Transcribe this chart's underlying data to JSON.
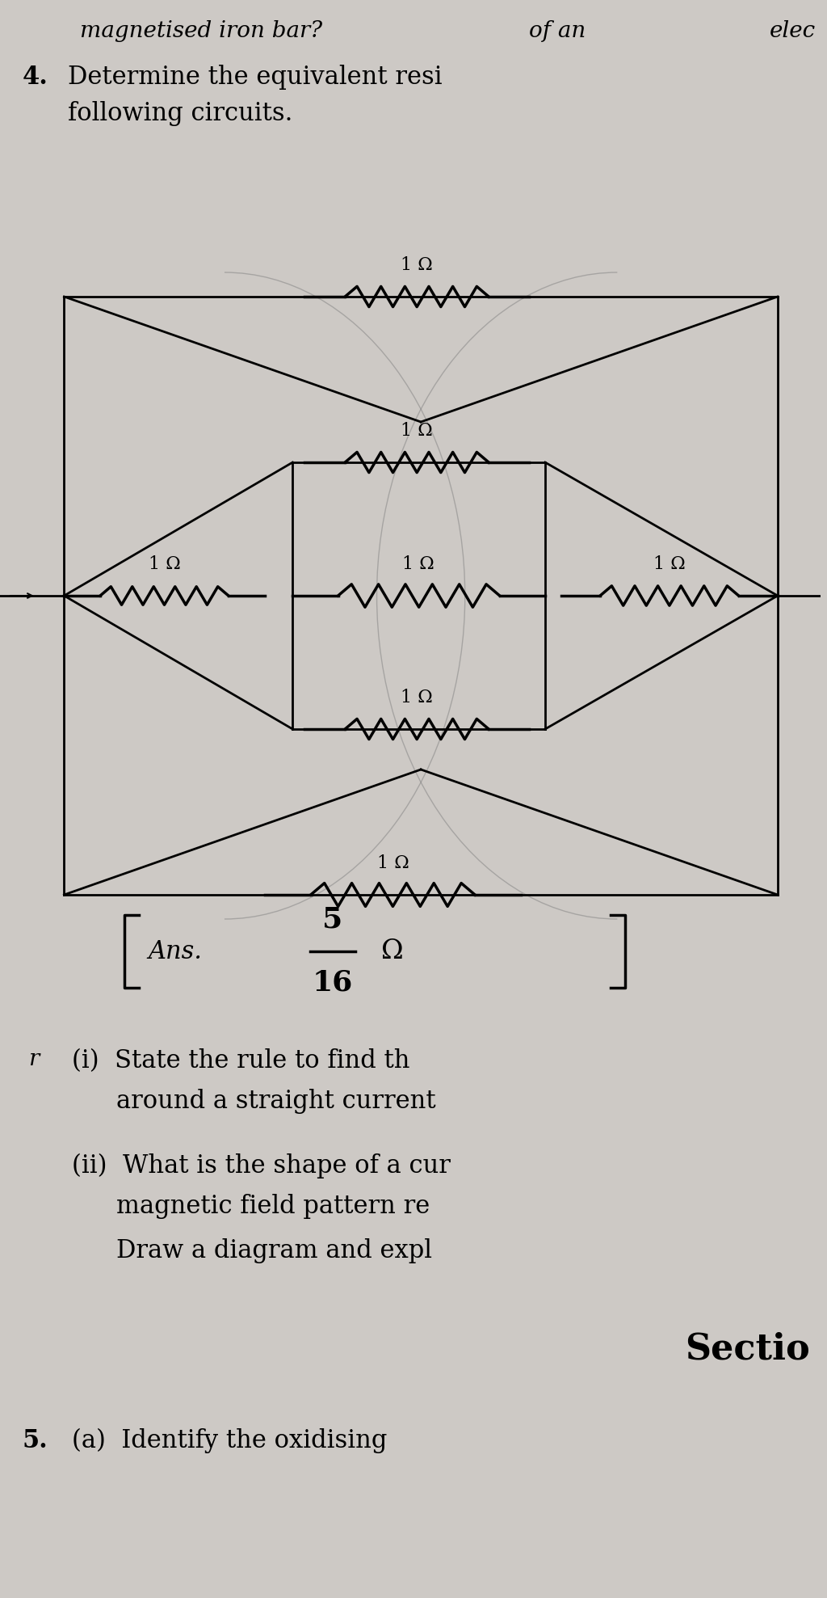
{
  "bg_color": "#cdc9c5",
  "title_line1": "magnetised iron bar?",
  "title_top_right": "elec",
  "title_top_mid": "of an",
  "question_num": "4.",
  "question_text": "Determine the equivalent resi",
  "question_text2": "following circuits.",
  "ans_text": "Ans.",
  "ans_fraction_num": "5",
  "ans_fraction_den": "16",
  "ans_omega": "Ω",
  "item_r": "r",
  "item_i_text": "(i)  State the rule to find th",
  "item_i_text2": "      around a straight current",
  "item_ii_text": "(ii)  What is the shape of a cur",
  "item_ii_text2": "       magnetic field pattern re",
  "item_ii_text3": "       Draw a diagram and expl",
  "section_text": "Sectio",
  "item5_num": "5.",
  "item5_text": "(a)  Identify the oxidising",
  "resistor_label": "1 Ω",
  "font_size_body": 20,
  "font_size_large": 26,
  "font_size_section": 30
}
